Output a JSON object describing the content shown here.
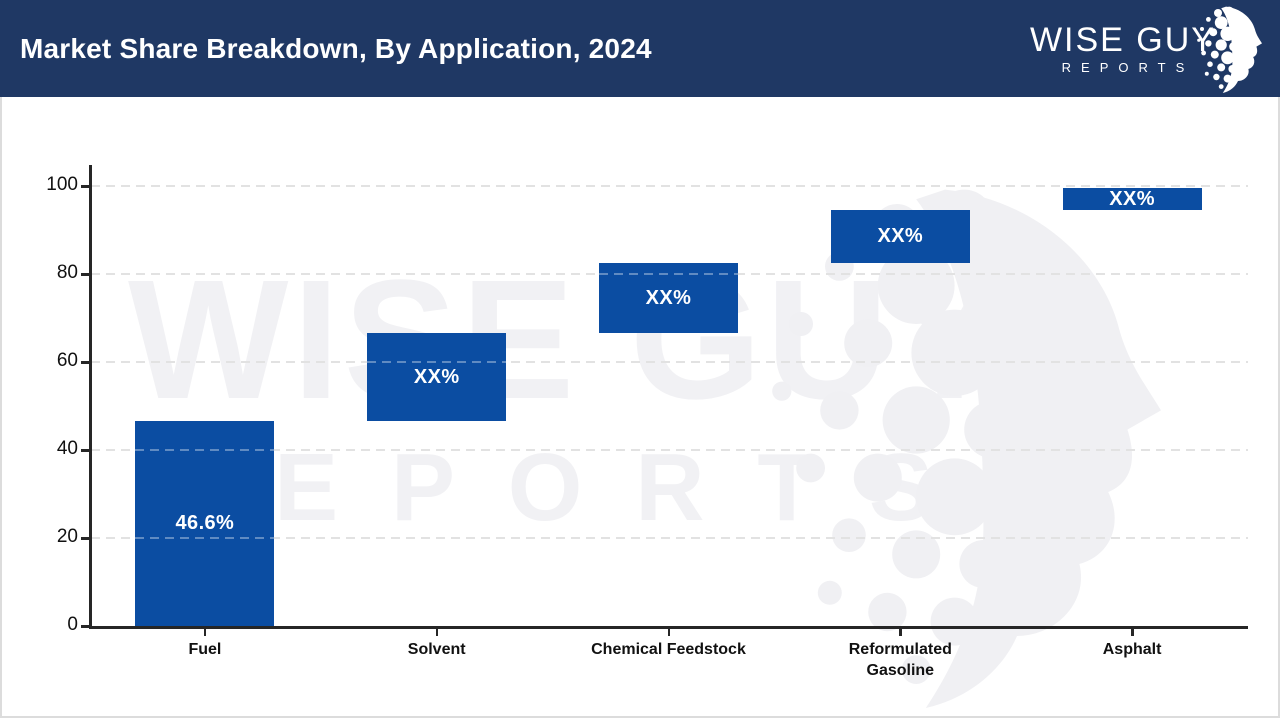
{
  "header": {
    "title": "Market Share Breakdown, By Application, 2024",
    "bg_color": "#1f3864",
    "logo": {
      "wordmark": "WISE GUY",
      "subtext": "REPORTS"
    }
  },
  "watermark": {
    "line1": "WISE GUY",
    "line2": "REPORTS"
  },
  "chart_data": {
    "type": "bar",
    "subtype": "waterfall",
    "title": "Market Share Breakdown, By Application, 2024",
    "categories": [
      "Fuel",
      "Solvent",
      "Chemical Feedstock",
      "Reformulated\nGasoline",
      "Asphalt"
    ],
    "segments": [
      {
        "category": "Fuel",
        "start": 0,
        "end": 46.6,
        "label": "46.6%"
      },
      {
        "category": "Solvent",
        "start": 46.6,
        "end": 66.6,
        "label": "XX%"
      },
      {
        "category": "Chemical Feedstock",
        "start": 66.6,
        "end": 82.6,
        "label": "XX%"
      },
      {
        "category": "Reformulated Gasoline",
        "start": 82.6,
        "end": 94.6,
        "label": "XX%"
      },
      {
        "category": "Asphalt",
        "start": 94.6,
        "end": 99.5,
        "label": "XX%"
      }
    ],
    "yticks": [
      0,
      20,
      40,
      60,
      80,
      100
    ],
    "ylim": [
      0,
      104.8
    ],
    "xlabel": "",
    "ylabel": "",
    "grid": "horizontal-dashed",
    "legend": "none",
    "bar_color": "#0b4da2",
    "bar_label_color": "#ffffff",
    "axis_color": "#262626",
    "grid_color": "#e2e2e2"
  }
}
